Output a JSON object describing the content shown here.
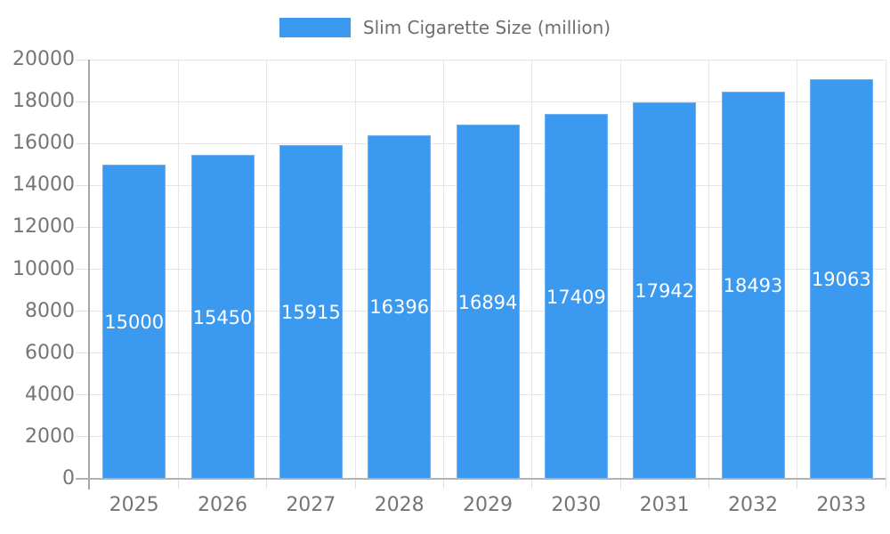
{
  "chart_data": {
    "type": "bar",
    "title": "Slim Cigarette Size (million)",
    "categories": [
      "2025",
      "2026",
      "2027",
      "2028",
      "2029",
      "2030",
      "2031",
      "2032",
      "2033"
    ],
    "series": [
      {
        "name": "Slim Cigarette Size (million)",
        "values": [
          15000,
          15450,
          15915,
          16396,
          16894,
          17409,
          17942,
          18493,
          19063
        ]
      }
    ],
    "bar_value_labels": [
      "15000",
      "15450",
      "15915",
      "16396",
      "16894",
      "17409",
      "17942",
      "18493",
      "19063"
    ],
    "xlabel": "",
    "ylabel": "",
    "ylim": [
      0,
      20000
    ],
    "ytick_step": 2000,
    "ytick_labels": [
      "0",
      "2000",
      "4000",
      "6000",
      "8000",
      "10000",
      "12000",
      "14000",
      "16000",
      "18000",
      "20000"
    ],
    "grid": true,
    "legend_position": "top-center",
    "colors": {
      "bar": "#3B99F0",
      "bar_value_label": "#FFFFFF",
      "axis_label": "#757575",
      "legend_label": "#6E6E6E",
      "gridline": "#E6E6E6",
      "axis_line": "#A6A6A6"
    }
  }
}
